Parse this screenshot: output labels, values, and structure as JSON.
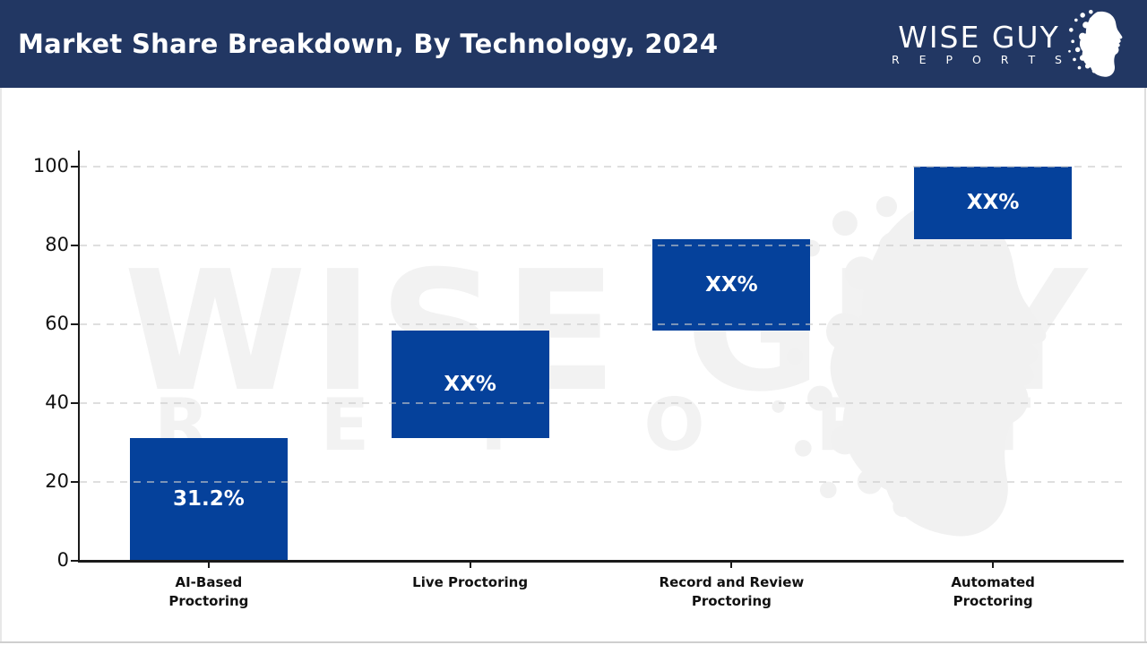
{
  "header": {
    "title": "Market Share Breakdown, By Technology, 2024",
    "logo": {
      "line1": "WISE GUY",
      "line2": "R E P O R T S"
    }
  },
  "watermark": {
    "line1": "WISE GUY",
    "line2": "R E P O R T S"
  },
  "chart_data": {
    "type": "bar",
    "subtype": "waterfall",
    "title": "Market Share Breakdown, By Technology, 2024",
    "categories": [
      [
        "AI-Based",
        "Proctoring"
      ],
      [
        "Live Proctoring"
      ],
      [
        "Record and Review",
        "Proctoring"
      ],
      [
        "Automated",
        "Proctoring"
      ]
    ],
    "segments": [
      {
        "category": "AI-Based Proctoring",
        "start": 0,
        "end": 31.2,
        "label": "31.2%"
      },
      {
        "category": "Live Proctoring",
        "start": 31.2,
        "end": 58.4,
        "label": "XX%"
      },
      {
        "category": "Record and Review Proctoring",
        "start": 58.4,
        "end": 81.6,
        "label": "XX%"
      },
      {
        "category": "Automated Proctoring",
        "start": 81.6,
        "end": 100,
        "label": "XX%"
      }
    ],
    "yticks": [
      0,
      20,
      40,
      60,
      80,
      100
    ],
    "ylim": [
      0,
      104
    ],
    "xlabel": "",
    "ylabel": "",
    "grid": "horizontal-dashed",
    "legend": null,
    "colors": {
      "bar": "#05419b",
      "bar_label_text": "#ffffff",
      "header_background": "#223763",
      "grid": "#e2e2e2",
      "axis": "#1a1a1a",
      "watermark": "#f2f2f2"
    }
  }
}
